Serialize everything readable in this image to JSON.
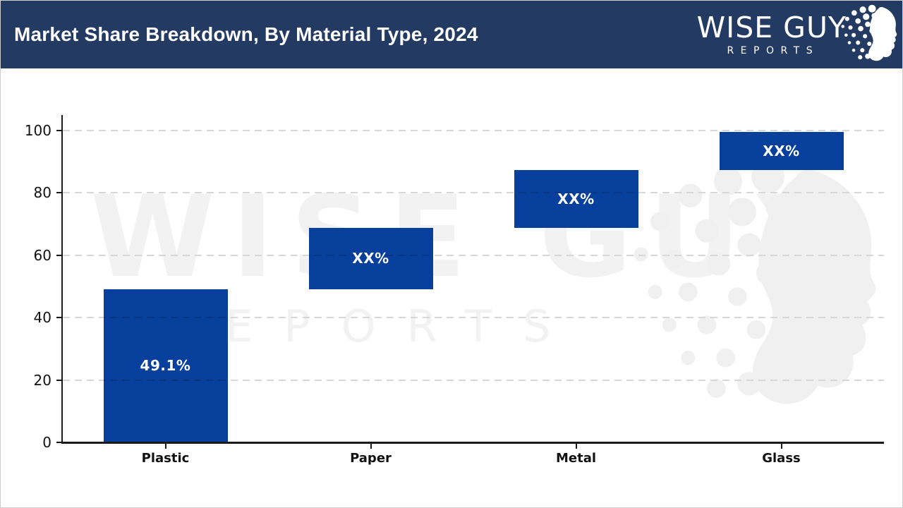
{
  "page": {
    "background": "#ffffff",
    "border_color": "#cfcfcf"
  },
  "header": {
    "background_color": "#233a63",
    "title": "Market Share Breakdown, By Material Type, 2024",
    "logo": {
      "primary": "WISE GUY",
      "secondary": "REPORTS"
    }
  },
  "watermark": {
    "primary": "WISE GUY",
    "secondary": "REPORTS"
  },
  "chart_data": {
    "type": "bar",
    "subtype": "waterfall",
    "title": "Market Share Breakdown, By Material Type, 2024",
    "categories": [
      "Plastic",
      "Paper",
      "Metal",
      "Glass"
    ],
    "segments": [
      {
        "category": "Plastic",
        "start": 0,
        "end": 49.1,
        "label": "49.1%"
      },
      {
        "category": "Paper",
        "start": 49.1,
        "end": 68.8,
        "label": "XX%"
      },
      {
        "category": "Metal",
        "start": 68.8,
        "end": 87.3,
        "label": "XX%"
      },
      {
        "category": "Glass",
        "start": 87.3,
        "end": 99.5,
        "label": "XX%"
      }
    ],
    "value_labels": [
      "49.1%",
      "XX%",
      "XX%",
      "XX%"
    ],
    "xlabel": "",
    "ylabel": "",
    "ylim": [
      0,
      105
    ],
    "yticks": [
      0,
      20,
      40,
      60,
      80,
      100
    ],
    "grid": "horizontal-dashed",
    "legend": "none",
    "bar_color": "#07409c",
    "bar_label_color": "#ffffff",
    "gridline_color": "#d7d7d7",
    "axis_color": "#1a1a1a"
  }
}
